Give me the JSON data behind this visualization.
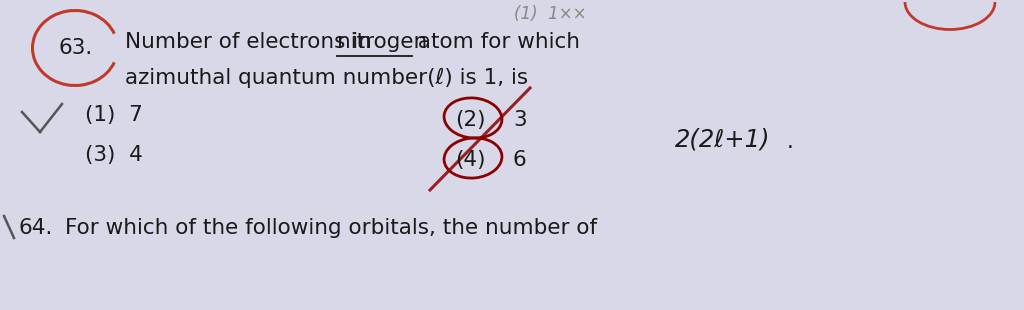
{
  "bg_color": "#d8d8e8",
  "text_color": "#1a1a1a",
  "question_num": "63.",
  "question_text_line1a": "Number of electrons in ",
  "question_text_underline": "nitrogen",
  "question_text_line1b": " atom for which",
  "question_text_line2": "azimuthal quantum number(ℓ) is 1, is",
  "option1": "(1)  7",
  "option2_label": "(2)",
  "option2_val": "3",
  "option3": "(3)  4",
  "option4_label": "(4)",
  "option4_val": "6",
  "annotation": "2(2ℓ+1)",
  "annotation_dot": ".",
  "next_q_num": "64.",
  "next_q_text": "For which of the following orbitals, the number of",
  "circle_color": "#c0392b",
  "handwriting_color": "#8B0000",
  "top_partial_text": "(1)  1××"
}
